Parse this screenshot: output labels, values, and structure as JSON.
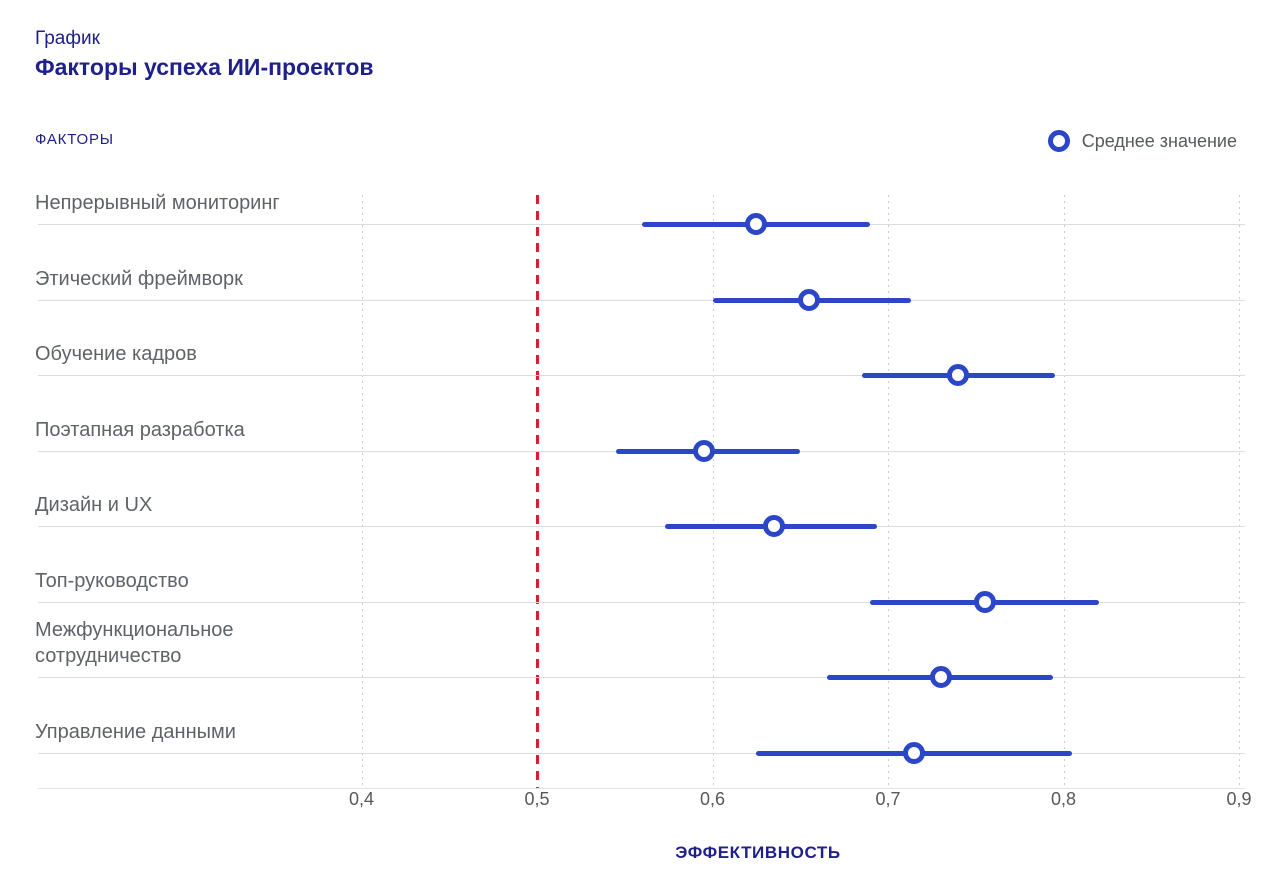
{
  "header": {
    "kicker": "График",
    "title": "Факторы успеха ИИ-проектов"
  },
  "legend": {
    "label": "Среднее значение",
    "marker": "open-circle"
  },
  "colors": {
    "navy": "#20208c",
    "blue": "#2b46c7",
    "red": "#e11931",
    "label_gray": "#5f6368",
    "grid_gray": "#cfcfcf"
  },
  "chart_data": {
    "type": "scatter",
    "subtype": "dot-and-interval (forest plot), horizontal",
    "title": "Факторы успеха ИИ-проектов",
    "xlabel": "ЭФФЕКТИВНОСТЬ",
    "ylabel": "ФАКТОРЫ",
    "xlim": [
      0.35,
      0.95
    ],
    "x_ticks": [
      0.4,
      0.5,
      0.6,
      0.7,
      0.8,
      0.9
    ],
    "x_tick_labels": [
      "0,4",
      "0,5",
      "0,6",
      "0,7",
      "0,8",
      "0,9"
    ],
    "grid_x_values": [
      0.4,
      0.6,
      0.7,
      0.8,
      0.9
    ],
    "grid": "vertical-dotted",
    "legend_position": "top-right",
    "reference_line": {
      "x": 0.5,
      "style": "dashed",
      "color": "#e11931"
    },
    "series_name": "Среднее значение",
    "rows": [
      {
        "label": "Непрерывный мониторинг",
        "mean": 0.625,
        "ci_low": 0.56,
        "ci_high": 0.69
      },
      {
        "label": "Этический фреймворк",
        "mean": 0.655,
        "ci_low": 0.6,
        "ci_high": 0.713
      },
      {
        "label": "Обучение кадров",
        "mean": 0.74,
        "ci_low": 0.685,
        "ci_high": 0.795
      },
      {
        "label": "Поэтапная разработка",
        "mean": 0.595,
        "ci_low": 0.545,
        "ci_high": 0.65
      },
      {
        "label": "Дизайн и UX",
        "mean": 0.635,
        "ci_low": 0.573,
        "ci_high": 0.694
      },
      {
        "label": "Топ-руководство",
        "mean": 0.755,
        "ci_low": 0.69,
        "ci_high": 0.82
      },
      {
        "label": "Межфункциональное сотрудничество",
        "mean": 0.73,
        "ci_low": 0.665,
        "ci_high": 0.794
      },
      {
        "label": "Управление данными",
        "mean": 0.715,
        "ci_low": 0.625,
        "ci_high": 0.805
      }
    ]
  }
}
